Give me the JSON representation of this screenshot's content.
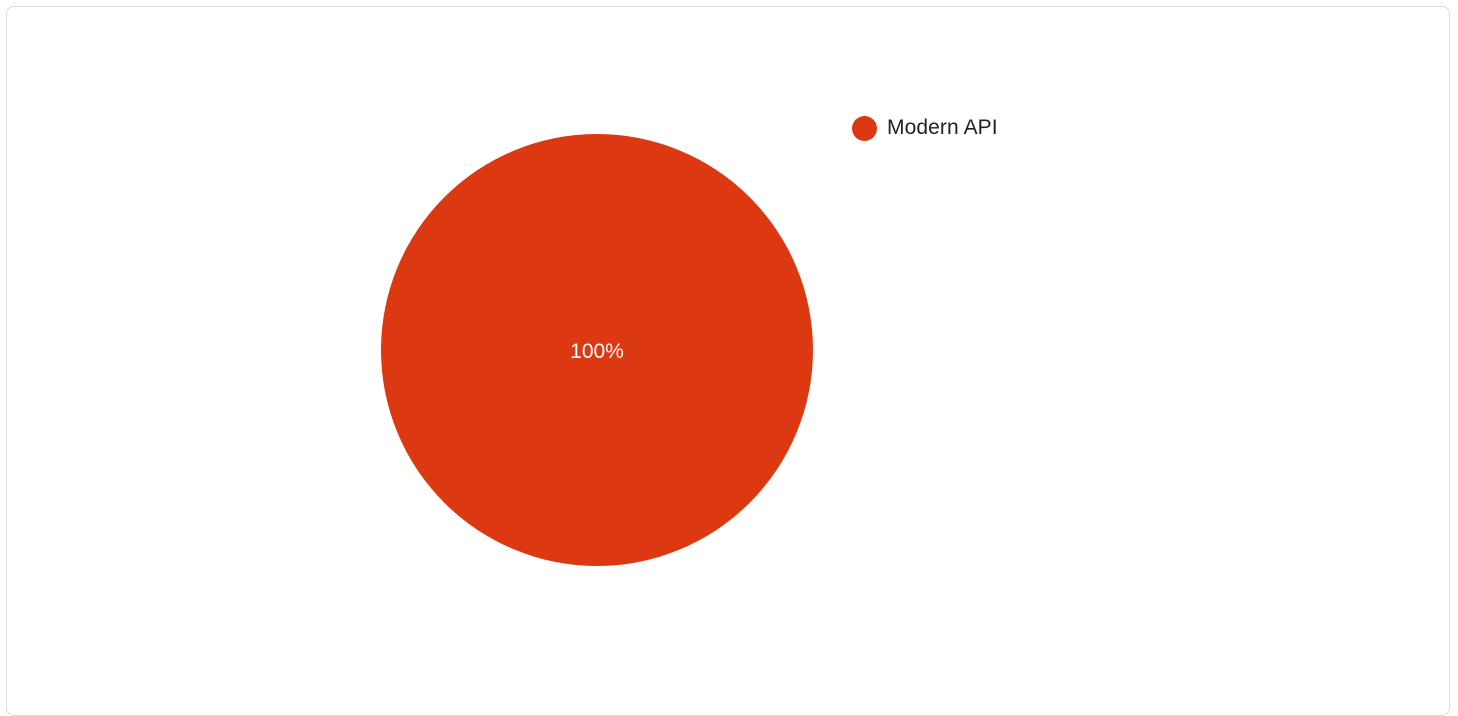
{
  "chart_data": {
    "type": "pie",
    "slices": [
      {
        "label": "Modern API",
        "value": 100,
        "display": "100%",
        "color": "#dc3912"
      }
    ],
    "legend_position": "right"
  },
  "colors": {
    "slice_label_text": "#ffffff",
    "card_border": "#dadce0"
  }
}
